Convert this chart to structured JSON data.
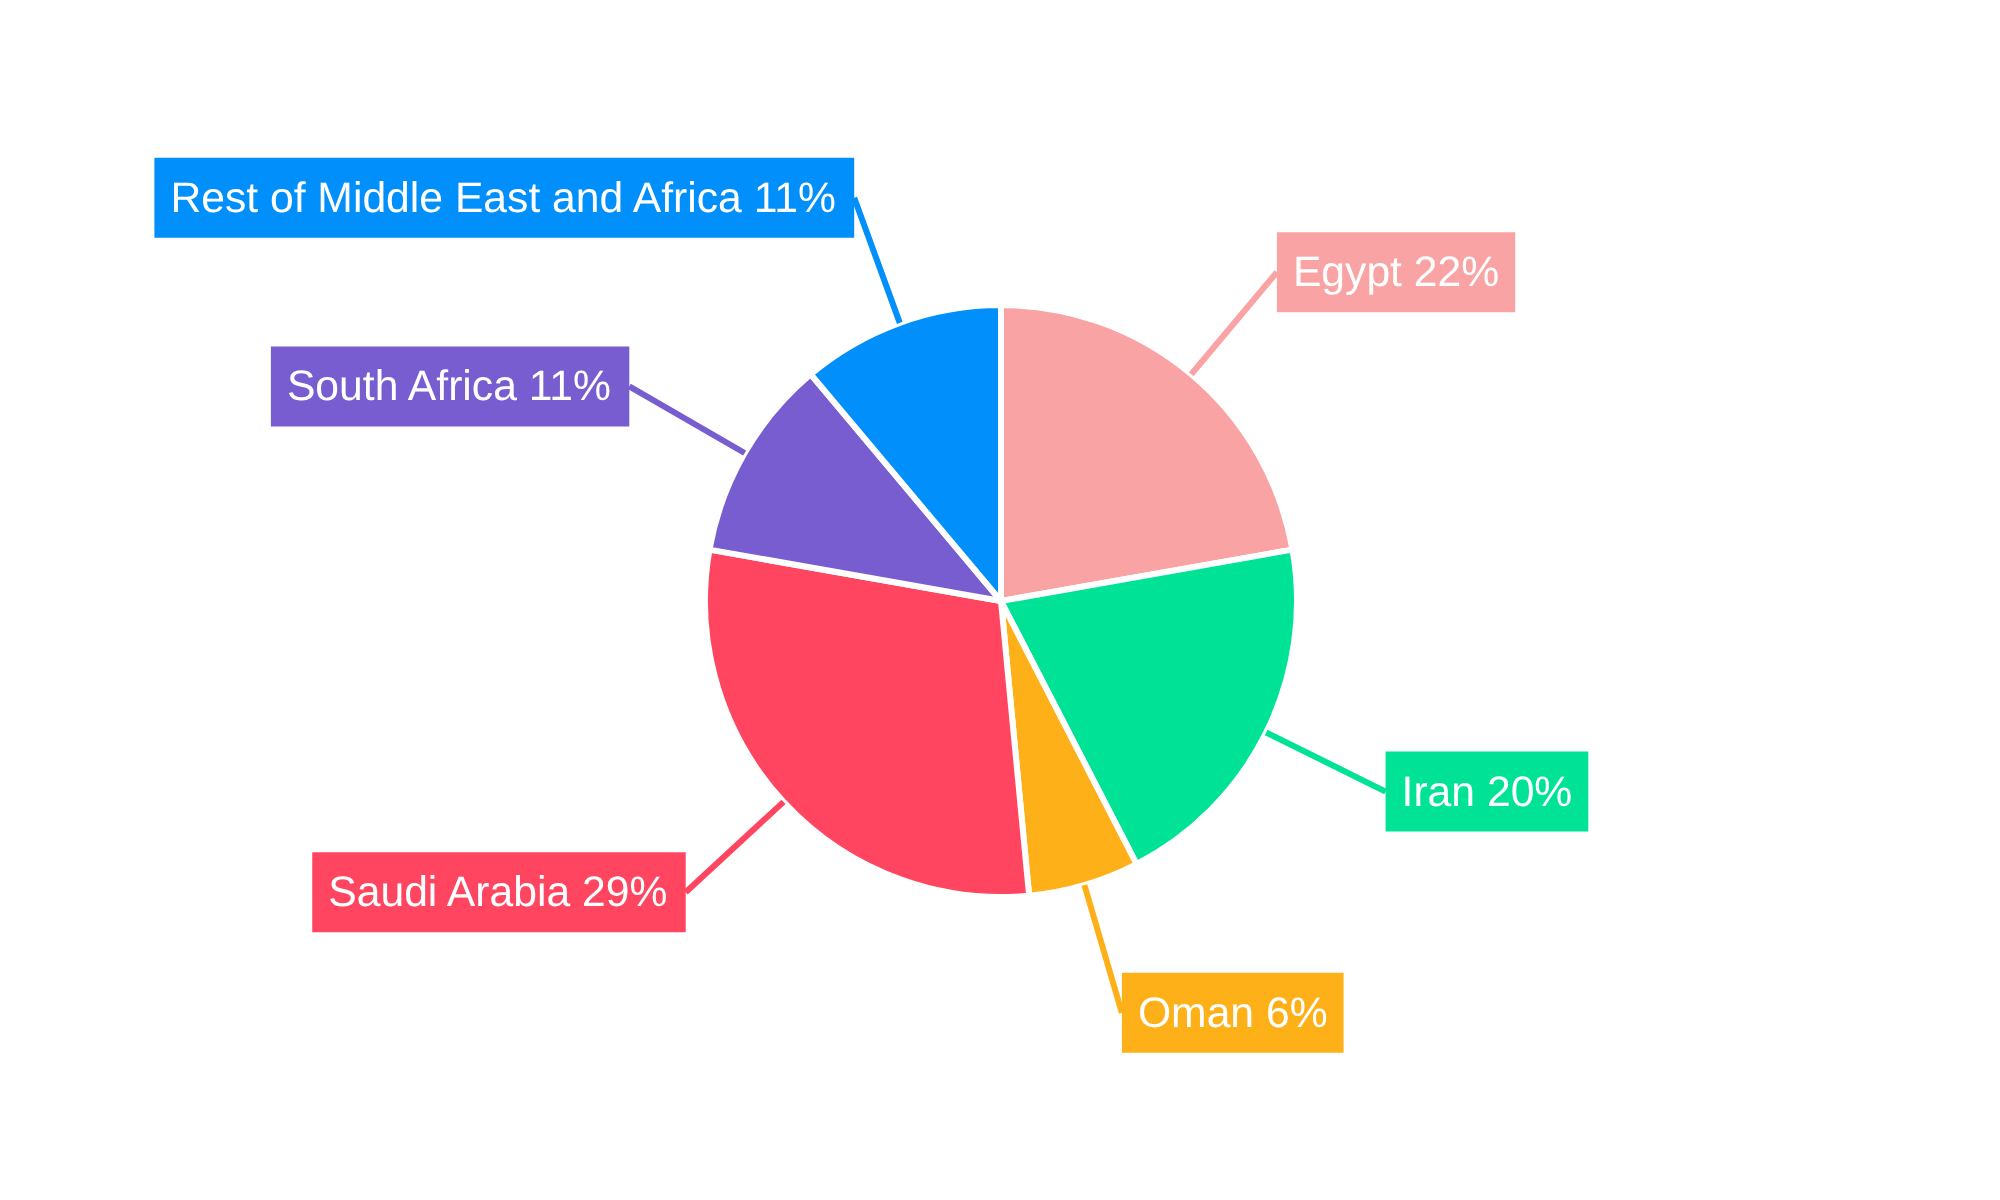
{
  "chart_data": {
    "type": "pie",
    "categories": [
      "Egypt",
      "Iran",
      "Oman",
      "Saudi Arabia",
      "South Africa",
      "Rest of Middle East and Africa"
    ],
    "values": [
      22,
      20,
      6,
      29,
      11,
      11
    ],
    "value_labels": [
      "22%",
      "20%",
      "6%",
      "29%",
      "11%",
      "11%"
    ],
    "colors": [
      "#f9a3a4",
      "#00e396",
      "#feb019",
      "#ff4560",
      "#775dd0",
      "#008ffb"
    ]
  }
}
